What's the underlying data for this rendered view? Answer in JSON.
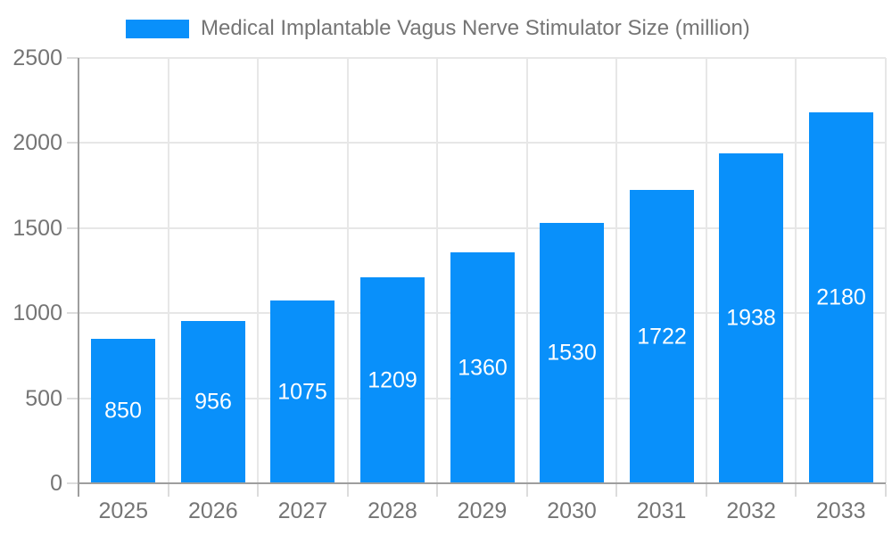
{
  "legend": {
    "series_label": "Medical Implantable Vagus Nerve Stimulator Size (million)"
  },
  "chart_data": {
    "type": "bar",
    "title": "Medical Implantable Vagus Nerve Stimulator Size (million)",
    "categories": [
      "2025",
      "2026",
      "2027",
      "2028",
      "2029",
      "2030",
      "2031",
      "2032",
      "2033"
    ],
    "values": [
      850,
      956,
      1075,
      1209,
      1360,
      1530,
      1722,
      1938,
      2180
    ],
    "xlabel": "",
    "ylabel": "",
    "ylim": [
      0,
      2500
    ],
    "yticks": [
      0,
      500,
      1000,
      1500,
      2000,
      2500
    ],
    "grid": true,
    "legend_position": "top",
    "bar_color": "#0990fa",
    "value_label_color": "#ffffff",
    "axis_text_color": "#757575",
    "gridline_color": "#e7e7e7",
    "axis_line_color": "#9e9e9e"
  }
}
